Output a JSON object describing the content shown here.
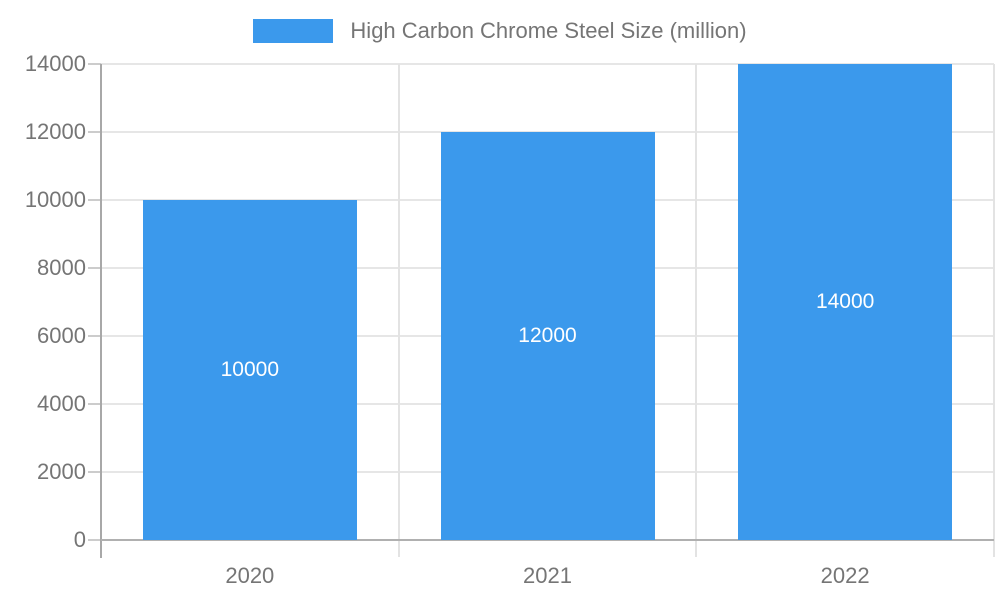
{
  "legend": {
    "label": "High Carbon Chrome Steel Size (million)"
  },
  "colors": {
    "bar": "#3B99EC",
    "grid": "#e6e6e6",
    "vertical_grid": "#e3e3e3",
    "tick": "#cccccc",
    "x_axis": "#b0b0b0",
    "y_axis": "#a8a8a8",
    "text": "#757575",
    "bar_label": "#ffffff",
    "background": "#ffffff"
  },
  "chart_data": {
    "type": "bar",
    "title": "High Carbon Chrome Steel Size (million)",
    "categories": [
      "2020",
      "2021",
      "2022"
    ],
    "values": [
      10000,
      12000,
      14000
    ],
    "bar_labels": [
      "10000",
      "12000",
      "14000"
    ],
    "xlabel": "",
    "ylabel": "",
    "ylim": [
      0,
      14000
    ],
    "yticks": [
      0,
      2000,
      4000,
      6000,
      8000,
      10000,
      12000,
      14000
    ],
    "ytick_labels": [
      "0",
      "2000",
      "4000",
      "6000",
      "8000",
      "10000",
      "12000",
      "14000"
    ],
    "grid": true,
    "legend_position": "top",
    "legend_entries": [
      "High Carbon Chrome Steel Size (million)"
    ]
  }
}
